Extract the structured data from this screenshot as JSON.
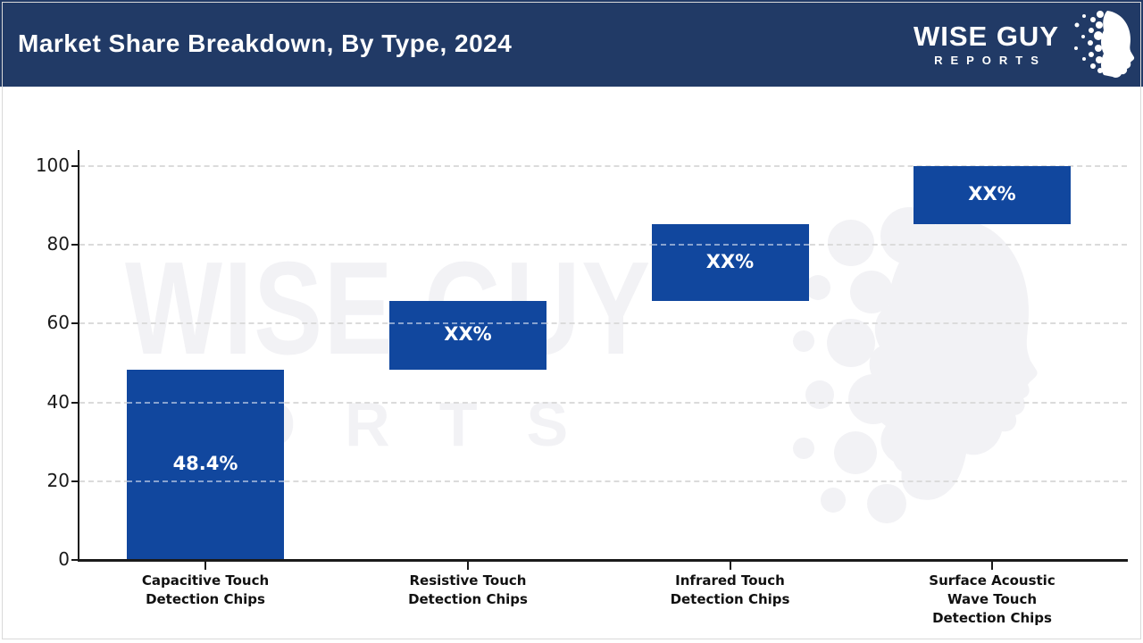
{
  "header": {
    "title": "Market Share Breakdown, By Type, 2024",
    "logo": {
      "line1": "WISE GUY",
      "line2": "REPORTS"
    }
  },
  "watermark": {
    "line1": "WISE GUY",
    "line2": "PORTS"
  },
  "colors": {
    "header_bg": "#213A66",
    "bar": "#11479E",
    "bar_label": "#FFFFFF",
    "gridline": "#DBDBDB",
    "axis": "#1A1A1A",
    "watermark": "#F2F2F5"
  },
  "chart_data": {
    "type": "bar",
    "subtype": "waterfall",
    "title": "Market Share Breakdown, By Type, 2024",
    "categories": [
      [
        "Capacitive Touch",
        "Detection Chips"
      ],
      [
        "Resistive Touch",
        "Detection Chips"
      ],
      [
        "Infrared Touch",
        "Detection Chips"
      ],
      [
        "Surface Acoustic",
        "Wave Touch",
        "Detection Chips"
      ]
    ],
    "segments": [
      {
        "category": "Capacitive Touch Detection Chips",
        "start": 0,
        "end": 48.4,
        "value": 48.4,
        "label": "48.4%"
      },
      {
        "category": "Resistive Touch Detection Chips",
        "start": 48.4,
        "end": 65.8,
        "value": 17.4,
        "label": "XX%"
      },
      {
        "category": "Infrared Touch Detection Chips",
        "start": 65.8,
        "end": 85.3,
        "value": 19.5,
        "label": "XX%"
      },
      {
        "category": "Surface Acoustic Wave Touch Detection Chips",
        "start": 85.3,
        "end": 100,
        "value": 14.7,
        "label": "XX%"
      }
    ],
    "xlabel": "",
    "ylabel": "",
    "yticks": [
      0,
      20,
      40,
      60,
      80,
      100
    ],
    "ylim": [
      0,
      105
    ],
    "grid": "horizontal-dashed",
    "legend": null
  }
}
